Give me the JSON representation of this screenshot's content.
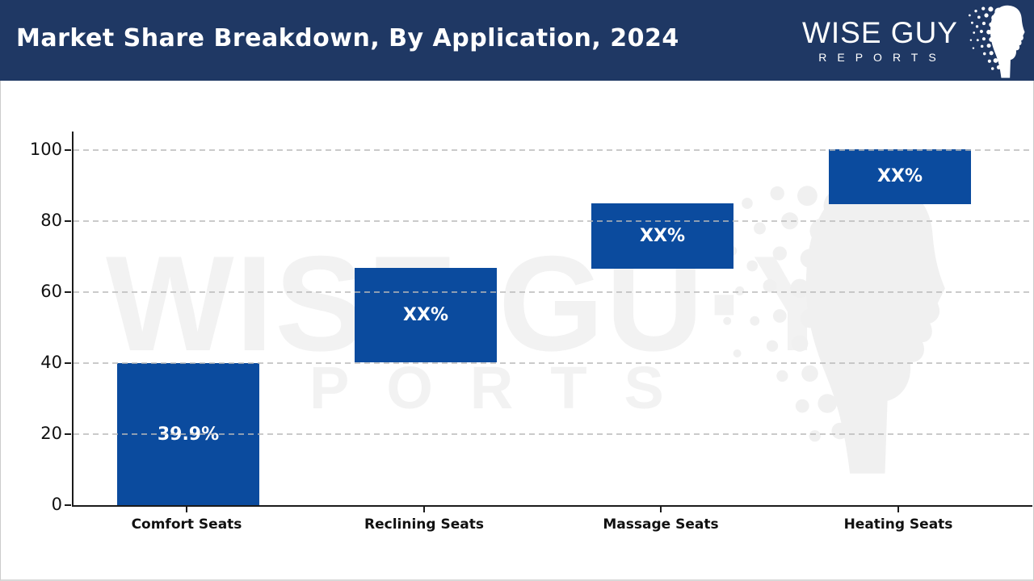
{
  "header": {
    "title": "Market Share Breakdown, By Application, 2024",
    "bg_color": "#1F3864",
    "logo": {
      "line1": "WISE GUY",
      "line2": "REPORTS"
    }
  },
  "watermark": {
    "line1": "WISE GU·Y",
    "line2": "PORTS"
  },
  "chart_data": {
    "type": "bar",
    "subtype": "waterfall",
    "title": "Market Share Breakdown, By Application, 2024",
    "categories": [
      "Comfort Seats",
      "Reclining Seats",
      "Massage Seats",
      "Heating Seats"
    ],
    "segments": [
      {
        "category": "Comfort Seats",
        "start": 0,
        "end": 39.9,
        "label": "39.9%"
      },
      {
        "category": "Reclining Seats",
        "start": 40.2,
        "end": 66.8,
        "label": "XX%"
      },
      {
        "category": "Massage Seats",
        "start": 66.6,
        "end": 84.9,
        "label": "XX%"
      },
      {
        "category": "Heating Seats",
        "start": 84.8,
        "end": 100.3,
        "label": "XX%"
      }
    ],
    "y_ticks": [
      0,
      20,
      40,
      60,
      80,
      100
    ],
    "ylim": [
      0,
      105.2
    ],
    "xlabel": "",
    "ylabel": "",
    "grid": true,
    "grid_style": "dashed",
    "legend": false,
    "bar_color": "#0B4B9E",
    "bar_label_color": "#FFFFFF",
    "axis_color": "#1a1a1a"
  }
}
